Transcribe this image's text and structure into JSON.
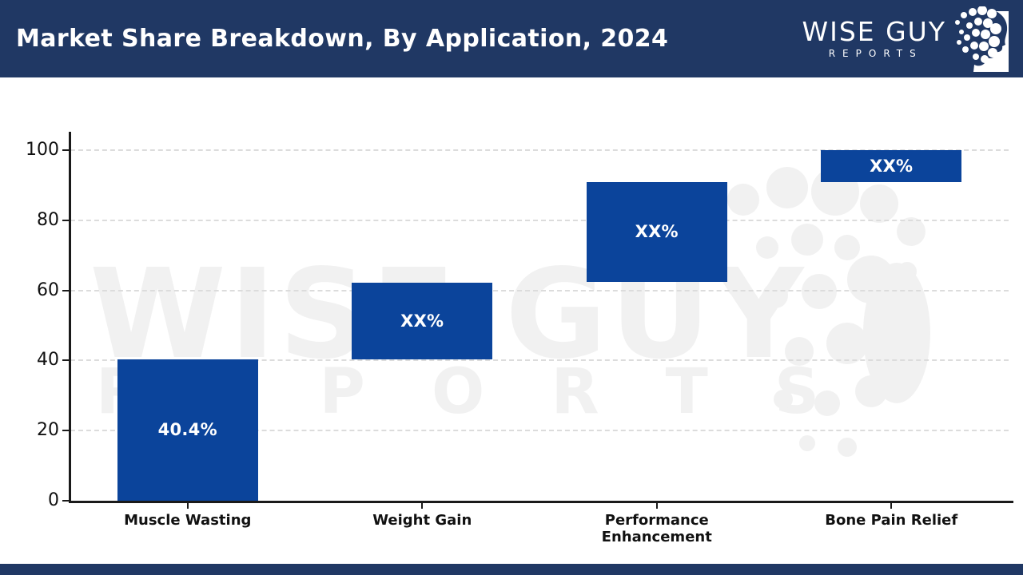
{
  "header": {
    "title": "Market Share Breakdown, By Application, 2024",
    "logo": {
      "wordmark": "WISE GUY",
      "subtext": "REPORTS"
    },
    "bg_color": "#203864"
  },
  "watermark": {
    "line1": "WISE GUY",
    "line2": "R E P O R T S",
    "color": "#f1f1f1"
  },
  "chart_data": {
    "type": "bar",
    "subtype": "waterfall",
    "title": "Market Share Breakdown, By Application, 2024",
    "categories": [
      "Muscle Wasting",
      "Weight Gain",
      "Performance Enhancement",
      "Bone Pain Relief"
    ],
    "segments": [
      {
        "category": "Muscle Wasting",
        "label_lines": [
          "Muscle Wasting"
        ],
        "start": 0,
        "end": 40.4,
        "value_label": "40.4%"
      },
      {
        "category": "Weight Gain",
        "label_lines": [
          "Weight Gain"
        ],
        "start": 40.4,
        "end": 62.3,
        "value_label": "XX%"
      },
      {
        "category": "Performance Enhancement",
        "label_lines": [
          "Performance",
          "Enhancement"
        ],
        "start": 62.3,
        "end": 91.0,
        "value_label": "XX%"
      },
      {
        "category": "Bone Pain Relief",
        "label_lines": [
          "Bone Pain Relief"
        ],
        "start": 91.0,
        "end": 100,
        "value_label": "XX%"
      }
    ],
    "yticks": [
      0,
      20,
      40,
      60,
      80,
      100
    ],
    "ylim": [
      0,
      105
    ],
    "xlabel": "",
    "ylabel": "",
    "grid": "horizontal-dashed",
    "legend": "none",
    "bar_color": "#0b449b",
    "grid_color": "#dcdcdc",
    "axis_color": "#1a1a1a"
  }
}
